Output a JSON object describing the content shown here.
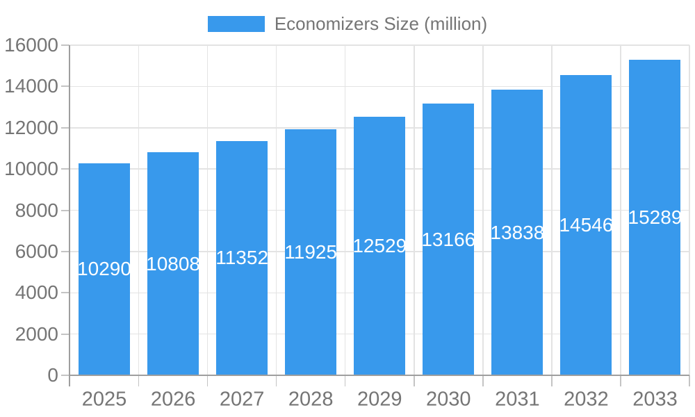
{
  "chart_data": {
    "type": "bar",
    "title": "",
    "legend_position": "top",
    "value_labels": "inside-middle",
    "grid": true,
    "categories": [
      "2025",
      "2026",
      "2027",
      "2028",
      "2029",
      "2030",
      "2031",
      "2032",
      "2033"
    ],
    "series": [
      {
        "name": "Economizers Size (million)",
        "values": [
          10290,
          10808,
          11352,
          11925,
          12529,
          13166,
          13838,
          14546,
          15289
        ]
      }
    ],
    "xlabel": "",
    "ylabel": "",
    "ylim": [
      0,
      16000
    ],
    "ytick_step": 2000,
    "colors": {
      "bar": "#3899EC",
      "bar_label": "#FFFFFF",
      "axis_text": "#757575",
      "legend_text": "#757575",
      "gridline": "#E3E3E3",
      "axis_line": "#9E9E9E",
      "tick": "#C4C4C4",
      "background": "#FFFFFF"
    }
  }
}
